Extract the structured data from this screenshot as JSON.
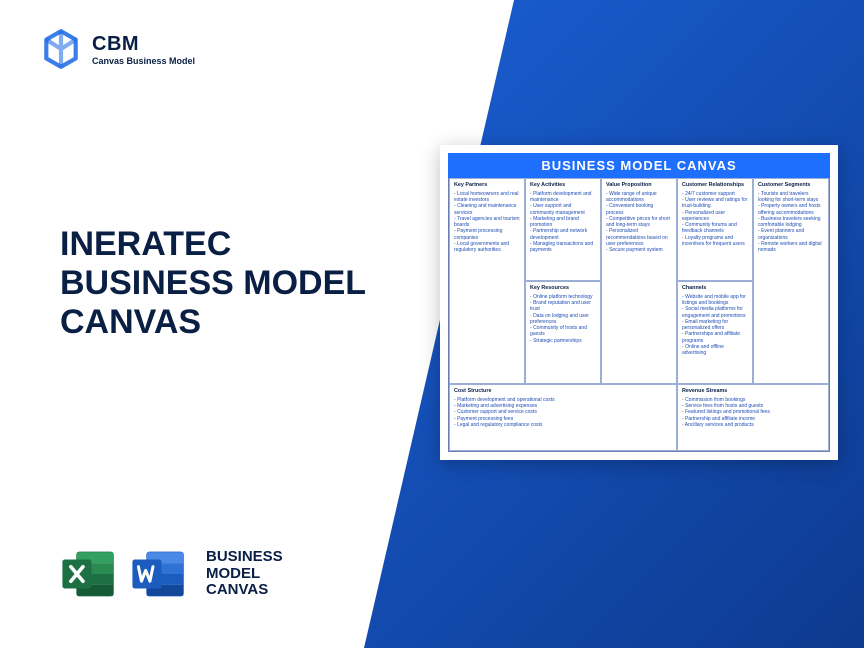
{
  "brand": {
    "title": "CBM",
    "subtitle": "Canvas Business Model"
  },
  "main_title": "INERATEC\nBUSINESS MODEL\nCANVAS",
  "format_label": "BUSINESS\nMODEL\nCANVAS",
  "colors": {
    "brand_blue": "#1967e6",
    "dark_blue": "#0a1f44",
    "grid_border": "#9aaed6",
    "gradient_start": "#1a5fd4",
    "gradient_end": "#0d3a8f",
    "excel_green": "#1d7044",
    "word_blue": "#1b5cbe",
    "canvas_header": "#1f6fff"
  },
  "canvas": {
    "title": "BUSINESS MODEL CANVAS",
    "sections": {
      "key_partners": {
        "label": "Key Partners",
        "items": [
          "Local homeowners and real estate investors",
          "Cleaning and maintenance services",
          "Travel agencies and tourism boards",
          "Payment processing companies",
          "Local governments and regulatory authorities"
        ]
      },
      "key_activities": {
        "label": "Key Activities",
        "items": [
          "Platform development and maintenance",
          "User support and community management",
          "Marketing and brand promotion",
          "Partnership and network development",
          "Managing transactions and payments"
        ]
      },
      "key_resources": {
        "label": "Key Resources",
        "items": [
          "Online platform technology",
          "Brand reputation and user trust",
          "Data on lodging and user preferences",
          "Community of hosts and guests",
          "Strategic partnerships"
        ]
      },
      "value_proposition": {
        "label": "Value Proposition",
        "items": [
          "Wide range of unique accommodations",
          "Convenient booking process",
          "Competitive prices for short and long-term stays",
          "Personalized recommendations based on user preferences",
          "Secure payment system"
        ]
      },
      "customer_relationships": {
        "label": "Customer Relationships",
        "items": [
          "24/7 customer support",
          "User reviews and ratings for trust-building",
          "Personalized user experiences",
          "Community forums and feedback channels",
          "Loyalty programs and incentives for frequent users"
        ]
      },
      "channels": {
        "label": "Channels",
        "items": [
          "Website and mobile app for listings and bookings",
          "Social media platforms for engagement and promotions",
          "Email marketing for personalized offers",
          "Partnerships and affiliate programs",
          "Online and offline advertising"
        ]
      },
      "customer_segments": {
        "label": "Customer Segments",
        "items": [
          "Tourists and travelers looking for short-term stays",
          "Property owners and hosts offering accommodations",
          "Business travelers seeking comfortable lodging",
          "Event planners and organizations",
          "Remote workers and digital nomads"
        ]
      },
      "cost_structure": {
        "label": "Cost Structure",
        "items": [
          "Platform development and operational costs",
          "Marketing and advertising expenses",
          "Customer support and service costs",
          "Payment processing fees",
          "Legal and regulatory compliance costs"
        ]
      },
      "revenue_streams": {
        "label": "Revenue Streams",
        "items": [
          "Commission from bookings",
          "Service fees from hosts and guests",
          "Featured listings and promotional fees",
          "Partnership and affiliate income",
          "Ancillary services and products"
        ]
      }
    }
  }
}
